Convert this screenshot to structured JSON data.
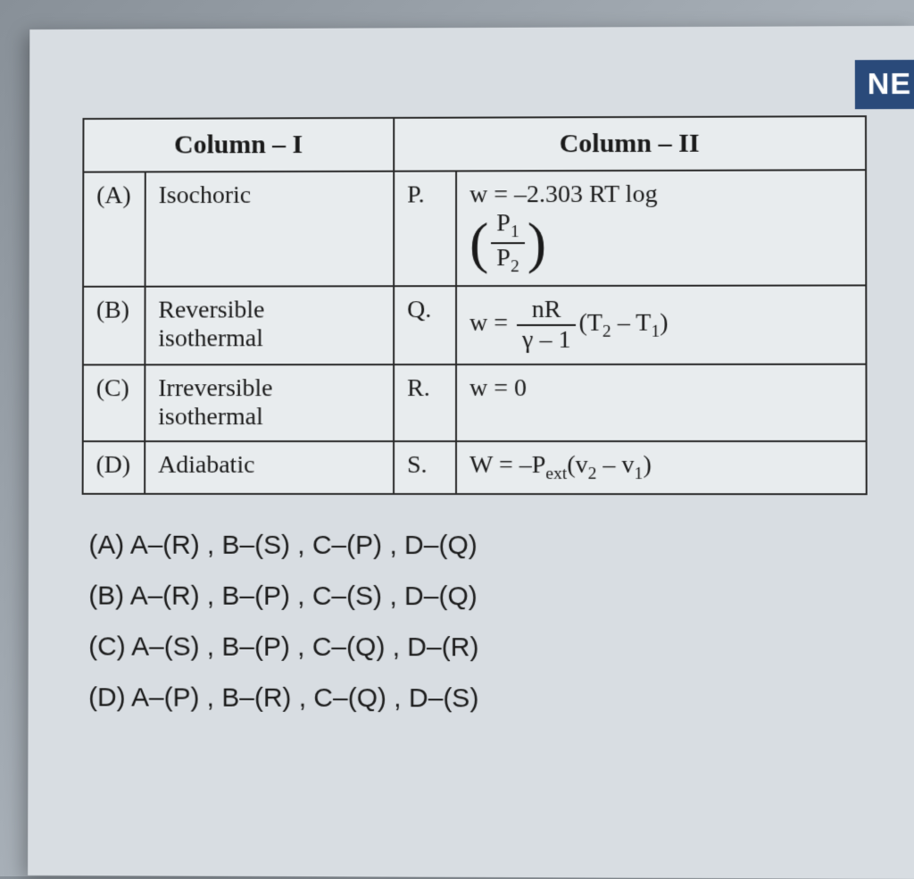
{
  "badge": "NE",
  "table": {
    "header_col1": "Column – I",
    "header_col2": "Column – II",
    "rows": [
      {
        "letter": "(A)",
        "name": "Isochoric",
        "code": "P.",
        "formula_type": "log",
        "prefix": "w = –2.303 RT log",
        "num": "P",
        "num_sub": "1",
        "den": "P",
        "den_sub": "2"
      },
      {
        "letter": "(B)",
        "name_line1": "Reversible",
        "name_line2": "isothermal",
        "code": "Q.",
        "formula_type": "frac_paren",
        "lhs": "w = ",
        "num": "nR",
        "den_a": "γ – 1",
        "rhs_open": "(T",
        "rhs_sub1": "2",
        "rhs_mid": " – T",
        "rhs_sub2": "1",
        "rhs_close": ")"
      },
      {
        "letter": "(C)",
        "name_line1": "Irreversible",
        "name_line2": "isothermal",
        "code": "R.",
        "formula_type": "plain",
        "text": "w = 0"
      },
      {
        "letter": "(D)",
        "name": "Adiabatic",
        "code": "S.",
        "formula_type": "pext",
        "lhs": "W = –P",
        "p_sub": "ext",
        "open": "(v",
        "sub1": "2",
        "mid": " – v",
        "sub2": "1",
        "close": ")"
      }
    ]
  },
  "options": {
    "a": "(A) A–(R) , B–(S) , C–(P) , D–(Q)",
    "b": "(B) A–(R) , B–(P) , C–(S) , D–(Q)",
    "c": "(C) A–(S) , B–(P) , C–(Q) , D–(R)",
    "d": "(D) A–(P) , B–(R) , C–(Q) , D–(S)"
  },
  "colors": {
    "badge_bg": "#2a4a7a",
    "badge_fg": "#ffffff",
    "paper_bg": "#d8dde2",
    "table_bg": "#e8ecee",
    "border": "#2a2a2a",
    "text": "#1a1a1a"
  }
}
